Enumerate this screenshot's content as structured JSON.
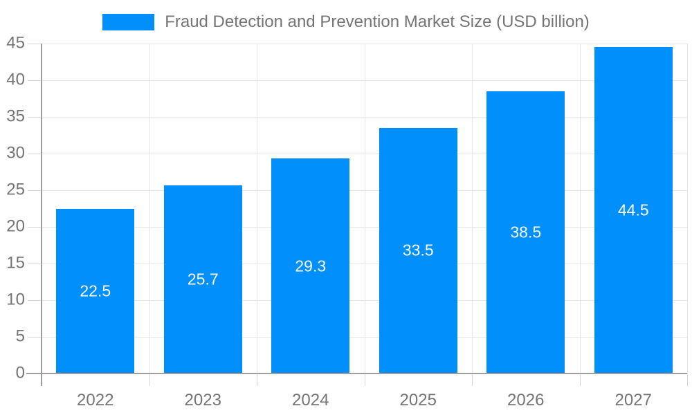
{
  "chart_data": {
    "type": "bar",
    "title": "Fraud Detection and Prevention Market Size (USD billion)",
    "legend": {
      "position": "top",
      "label": "Fraud Detection and Prevention Market Size (USD billion)"
    },
    "categories": [
      "2022",
      "2023",
      "2024",
      "2025",
      "2026",
      "2027"
    ],
    "values": [
      22.5,
      25.7,
      29.3,
      33.5,
      38.5,
      44.5
    ],
    "value_labels": [
      "22.5",
      "25.7",
      "29.3",
      "33.5",
      "38.5",
      "44.5"
    ],
    "xlabel": "",
    "ylabel": "",
    "ylim": [
      0,
      45
    ],
    "yticks": [
      0,
      5,
      10,
      15,
      20,
      25,
      30,
      35,
      40,
      45
    ],
    "grid": "full",
    "value_label_position": "center-inside",
    "colors": {
      "bar": "#008FFB",
      "grid": "#e6e6e6",
      "tick": "#d6d6d6",
      "axis": "#9e9e9e",
      "label_text": "#757575",
      "value_text": "#ffffff",
      "background": "#ffffff"
    }
  }
}
